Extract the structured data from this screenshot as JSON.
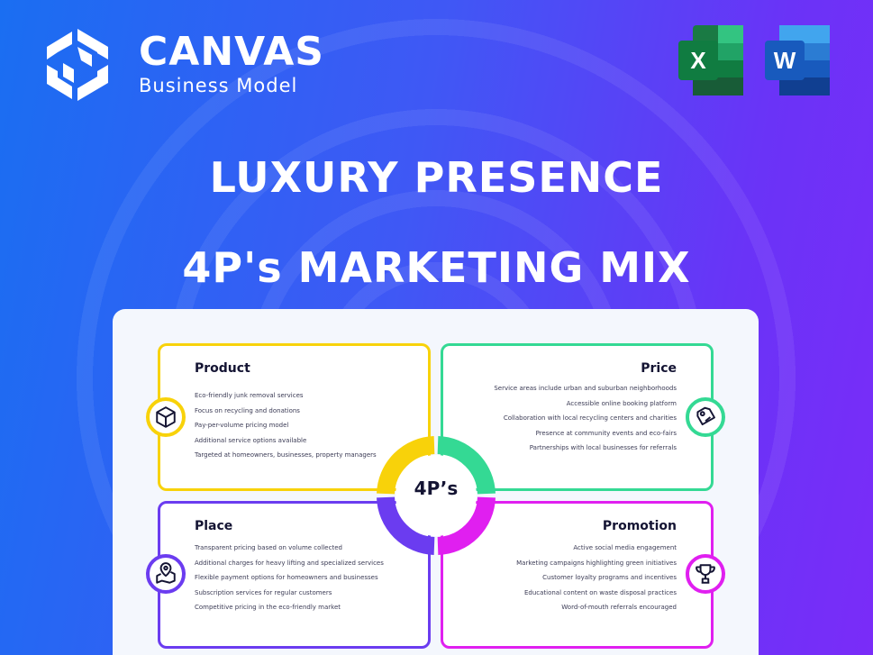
{
  "brand": {
    "name": "CANVAS",
    "tagline": "Business Model"
  },
  "apps": [
    {
      "name": "excel-icon",
      "letter": "X"
    },
    {
      "name": "word-icon",
      "letter": "W"
    }
  ],
  "title": {
    "line1": "LUXURY PRESENCE",
    "line2": "4P's MARKETING MIX"
  },
  "center_label": "4P’s",
  "colors": {
    "product": "#f8d20a",
    "price": "#34d994",
    "place": "#6b3cf0",
    "promotion": "#e01ff0"
  },
  "quadrants": {
    "product": {
      "title": "Product",
      "icon": "box-icon",
      "items": [
        "Eco-friendly junk removal services",
        "Focus on recycling and donations",
        "Pay-per-volume pricing model",
        "Additional service options available",
        "Targeted at homeowners, businesses, property managers"
      ]
    },
    "price": {
      "title": "Price",
      "icon": "price-tag-icon",
      "items": [
        "Service areas include urban and suburban neighborhoods",
        "Accessible online booking platform",
        "Collaboration with local recycling centers and charities",
        "Presence at community events and eco-fairs",
        "Partnerships with local businesses for referrals"
      ]
    },
    "place": {
      "title": "Place",
      "icon": "map-pin-icon",
      "items": [
        "Transparent pricing based on volume collected",
        "Additional charges for heavy lifting and specialized services",
        "Flexible payment options for homeowners and businesses",
        "Subscription services for regular customers",
        "Competitive pricing in the eco-friendly market"
      ]
    },
    "promotion": {
      "title": "Promotion",
      "icon": "trophy-icon",
      "items": [
        "Active social media engagement",
        "Marketing campaigns highlighting green initiatives",
        "Customer loyalty programs and incentives",
        "Educational content on waste disposal practices",
        "Word-of-mouth referrals encouraged"
      ]
    }
  }
}
